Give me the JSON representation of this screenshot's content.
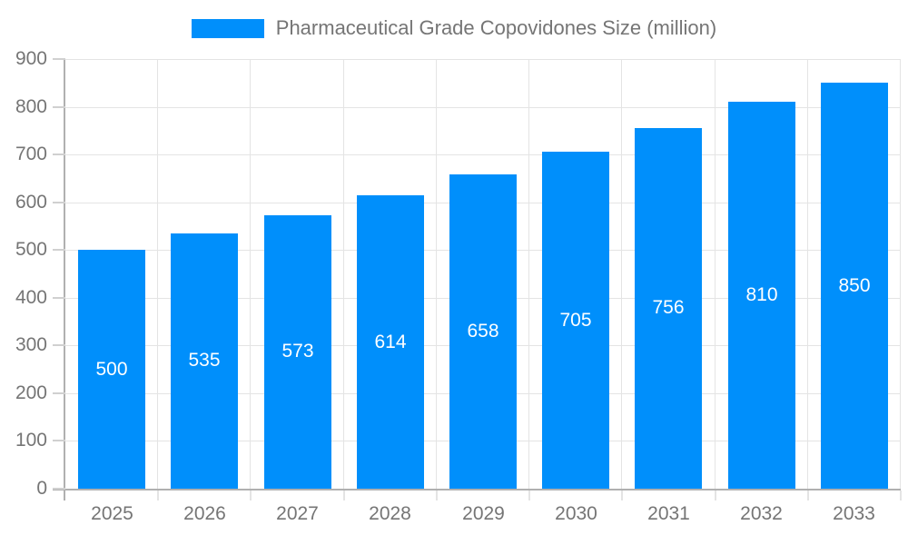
{
  "legend": {
    "series_label": "Pharmaceutical Grade Copovidones Size (million)"
  },
  "chart_data": {
    "type": "bar",
    "title": "Pharmaceutical Grade Copovidones Size (million)",
    "categories": [
      "2025",
      "2026",
      "2027",
      "2028",
      "2029",
      "2030",
      "2031",
      "2032",
      "2033"
    ],
    "values": [
      500,
      535,
      573,
      614,
      658,
      705,
      756,
      810,
      850
    ],
    "xlabel": "",
    "ylabel": "",
    "ylim": [
      0,
      900
    ],
    "ytick_step": 100,
    "grid": true,
    "legend_position": "top",
    "value_labels_inside_bars": true,
    "colors": {
      "bar": "#008FFB",
      "bar_value_label": "#ffffff",
      "axis_text": "#757575",
      "gridline": "#e4e4e4",
      "axis_line": "#b0b0b0",
      "tick": "#d0d0d0"
    }
  }
}
